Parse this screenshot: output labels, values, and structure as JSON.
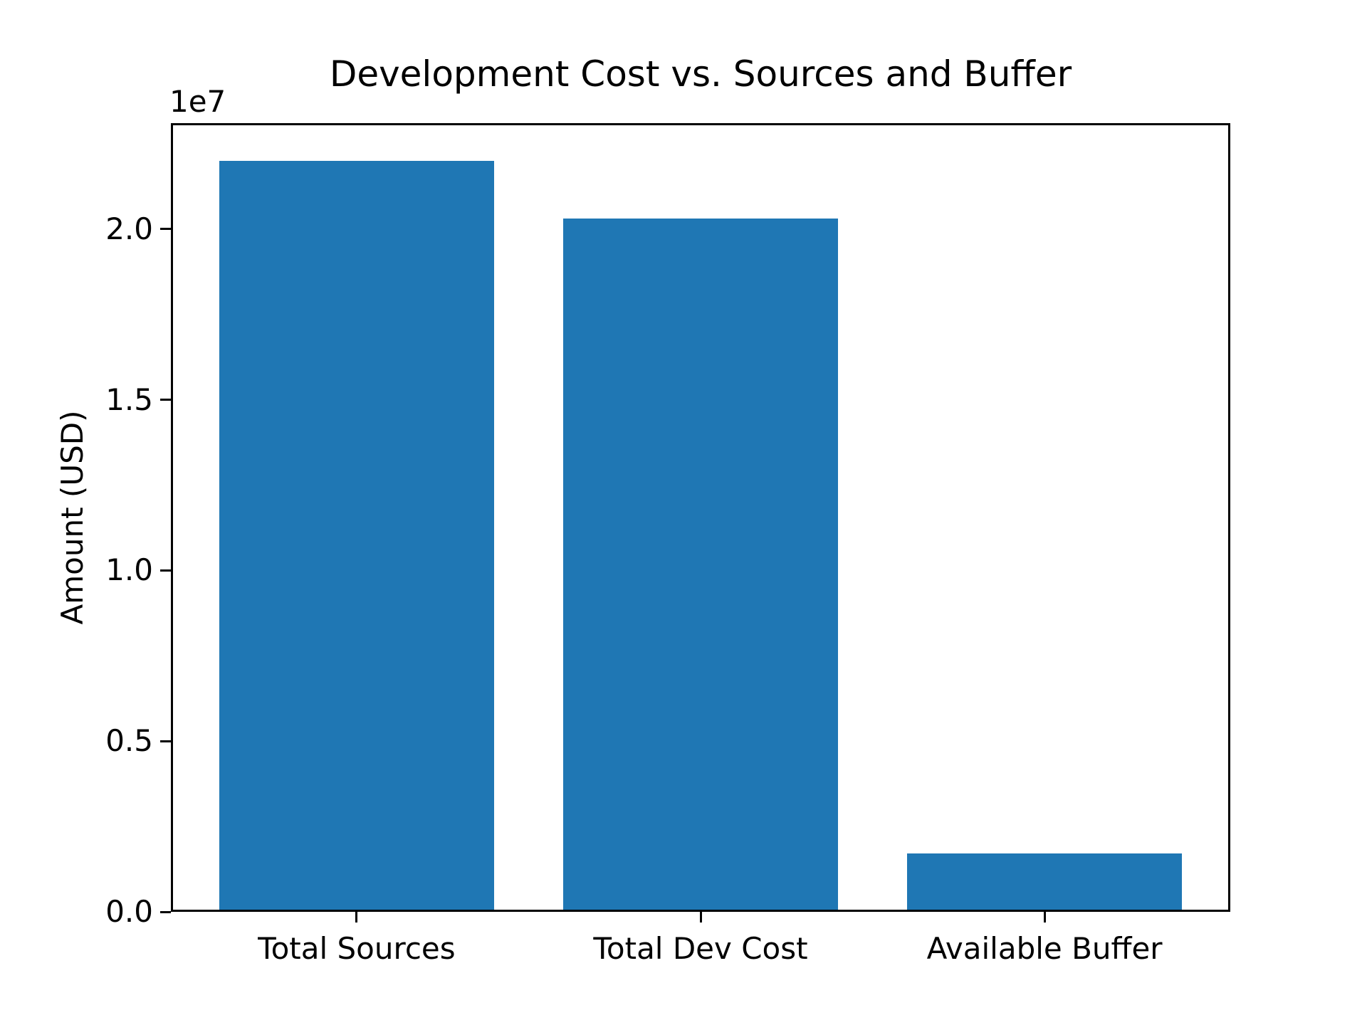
{
  "chart_data": {
    "type": "bar",
    "title": "Development Cost vs. Sources and Buffer",
    "xlabel": "",
    "ylabel": "Amount (USD)",
    "categories": [
      "Total Sources",
      "Total Dev Cost",
      "Available Buffer"
    ],
    "values": [
      22000000,
      20300000,
      1700000
    ],
    "bar_color": "#1f77b4",
    "axis_color": "#000000",
    "background_color": "#ffffff",
    "ylim": [
      0,
      23100000
    ],
    "yticks": [
      0,
      5000000,
      10000000,
      15000000,
      20000000
    ],
    "ytick_labels": [
      "0.0",
      "0.5",
      "1.0",
      "1.5",
      "2.0"
    ],
    "offset_text": "1e7",
    "grid": false,
    "legend": null
  }
}
